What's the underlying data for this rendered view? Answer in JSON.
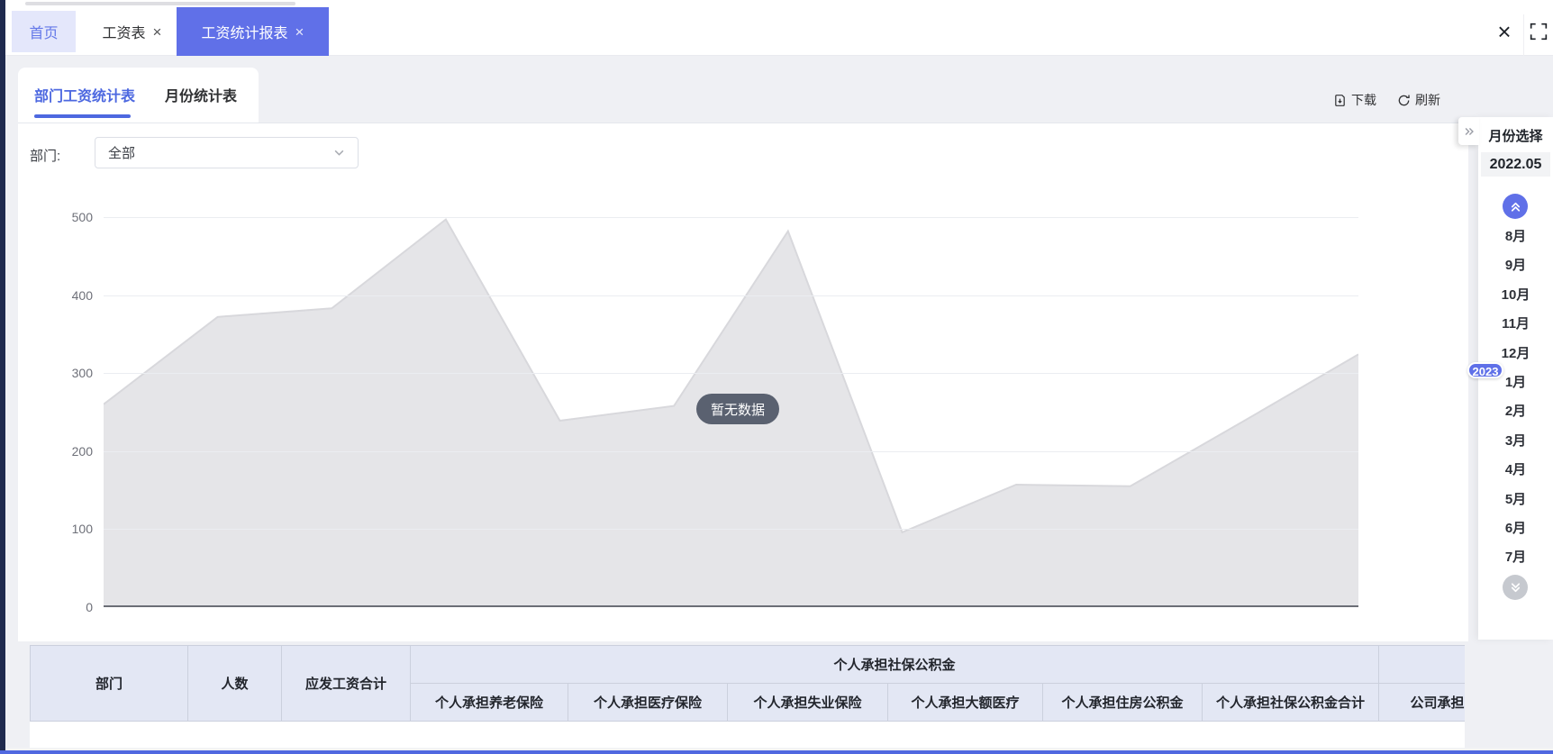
{
  "colors": {
    "accent": "#6070E8",
    "navy_edge": "#1F2A4E",
    "tooltip_bg": "#5A6170",
    "active_tab_text": "#4D68E0"
  },
  "window_tabs": {
    "home": {
      "label": "首页"
    },
    "sheet": {
      "label": "工资表",
      "close": "×"
    },
    "report": {
      "label": "工资统计报表",
      "close": "×"
    }
  },
  "window_controls": {
    "close": "×"
  },
  "report_tabs": {
    "department": "部门工资统计表",
    "month": "月份统计表"
  },
  "toolbar": {
    "download": "下载",
    "refresh": "刷新"
  },
  "filter": {
    "label": "部门:",
    "value": "全部"
  },
  "chart_data": {
    "type": "area",
    "title": "",
    "xlabel": "",
    "ylabel": "",
    "values": [
      260,
      372,
      383,
      497,
      239,
      258,
      482,
      96,
      157,
      155,
      239,
      324
    ],
    "ylim": [
      0,
      500
    ],
    "yticks": [
      0,
      100,
      200,
      300,
      400,
      500
    ],
    "grid": true,
    "legend": "none",
    "x_tick_labels_visible": false,
    "fill_color": "#E5E5E8",
    "line_color": "#D8D8DC",
    "empty_text": "暂无数据"
  },
  "month_panel": {
    "title": "月份选择",
    "selected": "2022.05",
    "year_badge": "2023",
    "months": [
      "8月",
      "9月",
      "10月",
      "11月",
      "12月",
      "1月",
      "2月",
      "3月",
      "4月",
      "5月",
      "6月",
      "7月"
    ]
  },
  "table": {
    "col_department": "部门",
    "col_headcount": "人数",
    "col_gross_total": "应发工资合计",
    "group_personal": "个人承担社保公积金",
    "sub_columns": [
      "个人承担养老保险",
      "个人承担医疗保险",
      "个人承担失业保险",
      "个人承担大额医疗",
      "个人承担住房公积金",
      "个人承担社保公积金合计"
    ],
    "col_company": "公司承担"
  }
}
